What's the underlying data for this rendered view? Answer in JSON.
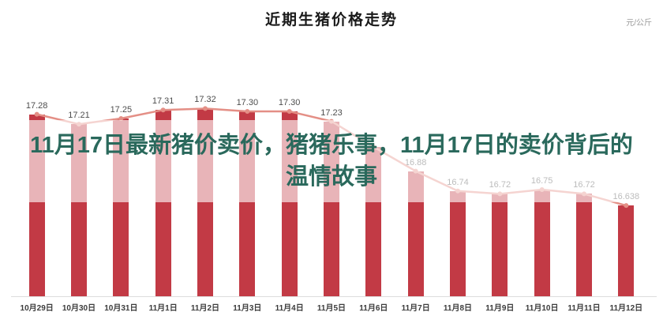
{
  "chart": {
    "title": "近期生猪价格走势",
    "unit_label": "元/公斤"
  },
  "overlay": {
    "text": "11月17日最新猪价卖价，猪猪乐事，11月17日的卖价背后的温情故事",
    "text_color": "#2a695c",
    "background": "rgba(255,255,255,0.62)"
  },
  "chart_data": {
    "type": "bar",
    "title": "近期生猪价格走势",
    "ylabel": "元/公斤",
    "categories": [
      "10月29日",
      "10月30日",
      "10月31日",
      "11月1日",
      "11月2日",
      "11月3日",
      "11月4日",
      "11月5日",
      "11月6日",
      "11月7日",
      "11月8日",
      "11月9日",
      "11月10日",
      "11月11日",
      "11月12日"
    ],
    "values": [
      17.28,
      17.21,
      17.25,
      17.31,
      17.32,
      17.3,
      17.3,
      17.23,
      17.05,
      16.88,
      16.74,
      16.72,
      16.75,
      16.72,
      16.638
    ],
    "value_labels": [
      "17.28",
      "17.21",
      "17.25",
      "17.31",
      "17.32",
      "17.30",
      "17.30",
      "17.23",
      "",
      "16.88",
      "16.74",
      "16.72",
      "16.75",
      "16.72",
      "16.638"
    ],
    "bar_color": "#c23a45",
    "line_color": "#e48f86",
    "ylim": [
      16.0,
      17.6
    ],
    "grid": false,
    "legend": false
  }
}
